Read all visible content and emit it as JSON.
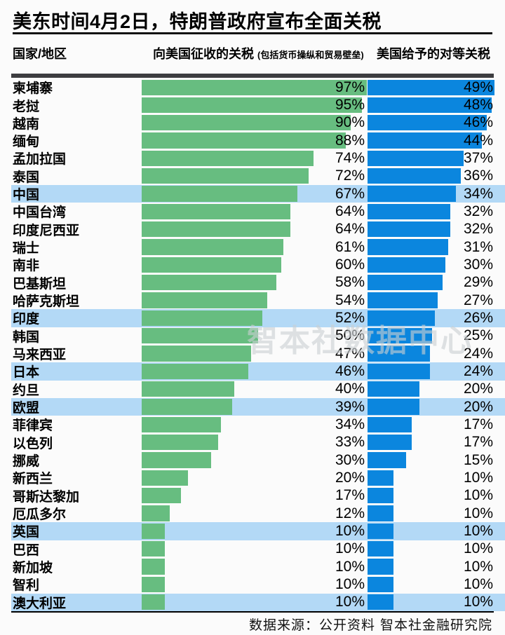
{
  "header": {
    "title": "美东时间4月2日，特朗普政府宣布全面关税",
    "col_country": "国家/地区",
    "col_charged": "向美国征收的关税",
    "col_charged_note": "(包括货币操纵和贸易壁垒)",
    "col_reciprocal": "美国给予的对等关税"
  },
  "watermark": "智本社数据中心",
  "footer": {
    "source": "数据来源：公开资料  智本社金融研究院"
  },
  "colors": {
    "green": "#67bd80",
    "blue": "#0b86de",
    "highlight": "#b3d9f6"
  },
  "chart_data": {
    "type": "bar",
    "orientation": "horizontal",
    "title": "美东时间4月2日，特朗普政府宣布全面关税",
    "legend_position": "top-header",
    "grid": false,
    "unit": "%",
    "charged_axis_max": 97,
    "reciprocal_axis_max": 49,
    "series": [
      {
        "name": "向美国征收的关税(包括货币操纵和贸易壁垒)",
        "color": "#67bd80"
      },
      {
        "name": "美国给予的对等关税",
        "color": "#0b86de"
      }
    ],
    "rows": [
      {
        "country": "柬埔寨",
        "charged": 97,
        "reciprocal": 49,
        "highlight": false
      },
      {
        "country": "老挝",
        "charged": 95,
        "reciprocal": 48,
        "highlight": false
      },
      {
        "country": "越南",
        "charged": 90,
        "reciprocal": 46,
        "highlight": false
      },
      {
        "country": "缅甸",
        "charged": 88,
        "reciprocal": 44,
        "highlight": false
      },
      {
        "country": "孟加拉国",
        "charged": 74,
        "reciprocal": 37,
        "highlight": false
      },
      {
        "country": "泰国",
        "charged": 72,
        "reciprocal": 36,
        "highlight": false
      },
      {
        "country": "中国",
        "charged": 67,
        "reciprocal": 34,
        "highlight": true
      },
      {
        "country": "中国台湾",
        "charged": 64,
        "reciprocal": 32,
        "highlight": false
      },
      {
        "country": "印度尼西亚",
        "charged": 64,
        "reciprocal": 32,
        "highlight": false
      },
      {
        "country": "瑞士",
        "charged": 61,
        "reciprocal": 31,
        "highlight": false
      },
      {
        "country": "南非",
        "charged": 60,
        "reciprocal": 30,
        "highlight": false
      },
      {
        "country": "巴基斯坦",
        "charged": 58,
        "reciprocal": 29,
        "highlight": false
      },
      {
        "country": "哈萨克斯坦",
        "charged": 54,
        "reciprocal": 27,
        "highlight": false
      },
      {
        "country": "印度",
        "charged": 52,
        "reciprocal": 26,
        "highlight": true
      },
      {
        "country": "韩国",
        "charged": 50,
        "reciprocal": 25,
        "highlight": false
      },
      {
        "country": "马来西亚",
        "charged": 47,
        "reciprocal": 24,
        "highlight": false
      },
      {
        "country": "日本",
        "charged": 46,
        "reciprocal": 24,
        "highlight": true
      },
      {
        "country": "约旦",
        "charged": 40,
        "reciprocal": 20,
        "highlight": false
      },
      {
        "country": "欧盟",
        "charged": 39,
        "reciprocal": 20,
        "highlight": true
      },
      {
        "country": "菲律宾",
        "charged": 34,
        "reciprocal": 17,
        "highlight": false
      },
      {
        "country": "以色列",
        "charged": 33,
        "reciprocal": 17,
        "highlight": false
      },
      {
        "country": "挪威",
        "charged": 30,
        "reciprocal": 15,
        "highlight": false
      },
      {
        "country": "新西兰",
        "charged": 20,
        "reciprocal": 10,
        "highlight": false
      },
      {
        "country": "哥斯达黎加",
        "charged": 17,
        "reciprocal": 10,
        "highlight": false
      },
      {
        "country": "厄瓜多尔",
        "charged": 12,
        "reciprocal": 10,
        "highlight": false
      },
      {
        "country": "英国",
        "charged": 10,
        "reciprocal": 10,
        "highlight": true
      },
      {
        "country": "巴西",
        "charged": 10,
        "reciprocal": 10,
        "highlight": false
      },
      {
        "country": "新加坡",
        "charged": 10,
        "reciprocal": 10,
        "highlight": false
      },
      {
        "country": "智利",
        "charged": 10,
        "reciprocal": 10,
        "highlight": false
      },
      {
        "country": "澳大利亚",
        "charged": 10,
        "reciprocal": 10,
        "highlight": true
      }
    ]
  }
}
